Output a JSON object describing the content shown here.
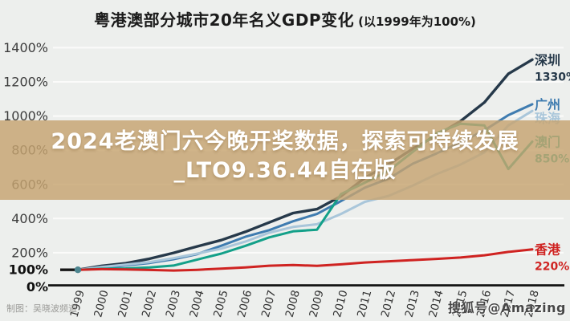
{
  "title": {
    "main": "粤港澳部分城市20年名义GDP变化",
    "suffix": "(以1999年为100%)"
  },
  "overlay_banner": {
    "line1": "2024老澳门六今晚开奖数据，探索可持续发展",
    "line2": "_LTO9.36.44自在版",
    "bg_color": "#c6a370",
    "bg_opacity": 0.82,
    "text_color": "#ffffff"
  },
  "watermarks": {
    "bottom_left": "制图：吴晓波频道",
    "bottom_right": "搜狐号@Amazing"
  },
  "chart_data": {
    "type": "line",
    "title": "粤港澳部分城市20年名义GDP变化 (以1999年为100%)",
    "xlabel": "",
    "ylabel": "",
    "x": [
      1999,
      2000,
      2001,
      2002,
      2003,
      2004,
      2005,
      2006,
      2007,
      2008,
      2009,
      2010,
      2011,
      2012,
      2013,
      2014,
      2015,
      2016,
      2017,
      2018
    ],
    "ylim": [
      0,
      1400
    ],
    "unit": "%",
    "baseline_note": "1999 = 100%",
    "grid": true,
    "legend_position": "right-end-labels",
    "yticks": [
      {
        "label": "1400%",
        "value": 1400,
        "bold": false
      },
      {
        "label": "1200%",
        "value": 1200,
        "bold": false
      },
      {
        "label": "1000%",
        "value": 1000,
        "bold": false
      },
      {
        "label": "800%",
        "value": 800,
        "bold": false
      },
      {
        "label": "600%",
        "value": 600,
        "bold": false
      },
      {
        "label": "400%",
        "value": 400,
        "bold": false
      },
      {
        "label": "200%",
        "value": 200,
        "bold": false
      },
      {
        "label": "100%",
        "value": 100,
        "bold": true
      },
      {
        "label": "0%",
        "value": 0,
        "bold": true
      }
    ],
    "start_marker": {
      "x": 1999,
      "value": 100,
      "dot_color": "#4d858f"
    },
    "series": [
      {
        "name": "深圳",
        "color": "#26394a",
        "end_label": "1330%",
        "values": [
          100,
          123,
          138,
          165,
          199,
          237,
          274,
          322,
          377,
          432,
          455,
          531,
          638,
          718,
          808,
          887,
          970,
          1080,
          1247,
          1330
        ]
      },
      {
        "name": "广州",
        "color": "#3f7cb0",
        "end_label": "",
        "values": [
          100,
          111,
          126,
          140,
          162,
          192,
          241,
          293,
          332,
          384,
          427,
          502,
          581,
          634,
          721,
          781,
          846,
          917,
          1005,
          1069
        ]
      },
      {
        "name": "珠海",
        "color": "#a9c6da",
        "end_label": "",
        "values": [
          100,
          117,
          130,
          145,
          168,
          195,
          224,
          265,
          317,
          351,
          367,
          427,
          498,
          533,
          593,
          660,
          716,
          787,
          945,
          1030
        ]
      },
      {
        "name": "澳门",
        "color": "#13a089",
        "end_label": "850%",
        "values": [
          100,
          106,
          108,
          114,
          125,
          160,
          195,
          240,
          290,
          325,
          335,
          543,
          610,
          680,
          790,
          900,
          955,
          945,
          690,
          850
        ]
      },
      {
        "name": "香港",
        "color": "#cf2321",
        "end_label": "220%",
        "values": [
          100,
          104,
          102,
          99,
          96,
          100,
          107,
          114,
          124,
          128,
          123,
          132,
          143,
          150,
          157,
          164,
          172,
          185,
          205,
          220
        ]
      }
    ]
  }
}
